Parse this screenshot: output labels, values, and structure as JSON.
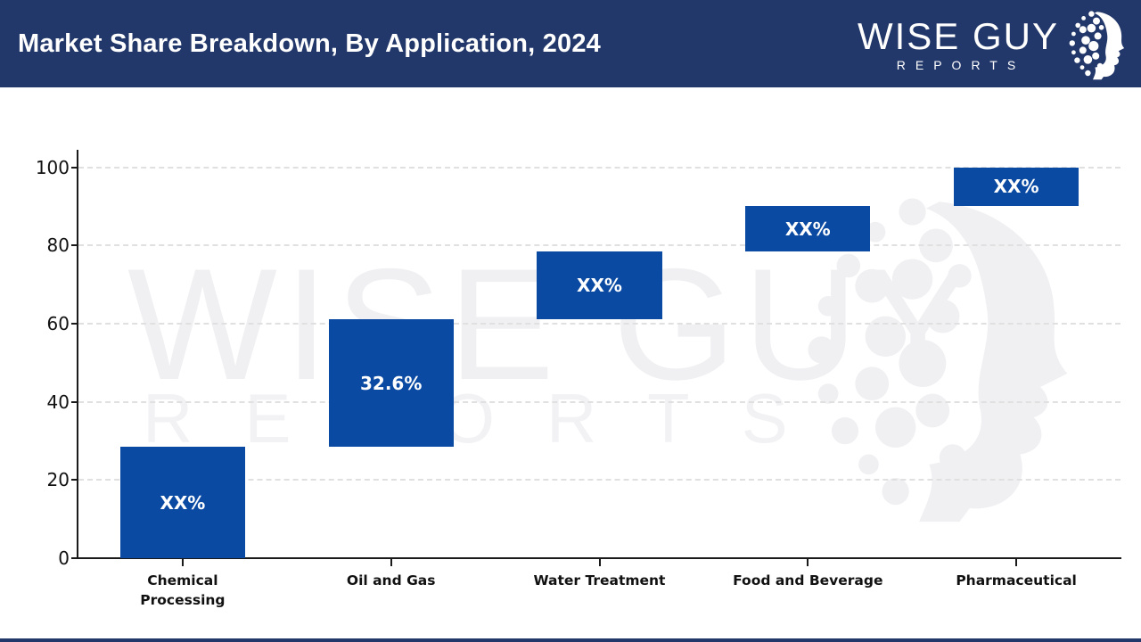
{
  "header": {
    "title": "Market Share Breakdown, By Application, 2024",
    "logo": {
      "line1": "WISE GUY",
      "line2": "REPORTS"
    }
  },
  "watermark": {
    "line1": "WISE GUY",
    "line2": "REPORTS"
  },
  "colors": {
    "header_bg": "#23386a",
    "bar": "#0b4aa2",
    "bar_label": "#ffffff",
    "gridline": "#e0e0e0",
    "axis": "#1a1a1a"
  },
  "chart_data": {
    "type": "bar",
    "subtype": "waterfall",
    "title": "Market Share Breakdown, By Application, 2024",
    "xlabel": "",
    "ylabel": "",
    "ylim": [
      0,
      100
    ],
    "yticks": [
      0,
      20,
      40,
      60,
      80,
      100
    ],
    "grid": "horizontal-dashed",
    "legend": "none",
    "categories": [
      "Chemical\nProcessing",
      "Oil and Gas",
      "Water Treatment",
      "Food and Beverage",
      "Pharmaceutical"
    ],
    "bars": [
      {
        "category": "Chemical Processing",
        "start": 0,
        "end": 28.5,
        "value": 28.5,
        "label": "XX%"
      },
      {
        "category": "Oil and Gas",
        "start": 28.5,
        "end": 61.1,
        "value": 32.6,
        "label": "32.6%"
      },
      {
        "category": "Water Treatment",
        "start": 61.1,
        "end": 78.5,
        "value": 17.4,
        "label": "XX%"
      },
      {
        "category": "Food and Beverage",
        "start": 78.5,
        "end": 90.0,
        "value": 11.5,
        "label": "XX%"
      },
      {
        "category": "Pharmaceutical",
        "start": 90.0,
        "end": 100.0,
        "value": 10.0,
        "label": "XX%"
      }
    ]
  }
}
